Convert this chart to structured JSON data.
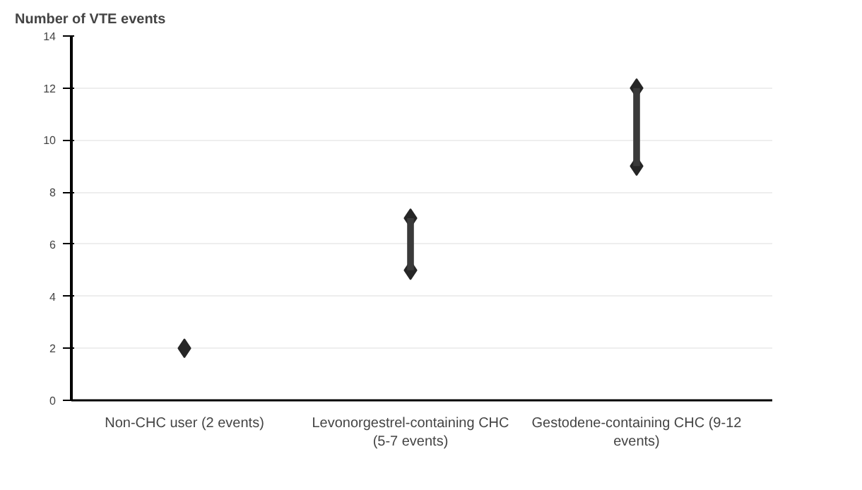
{
  "chart_data": {
    "type": "bar",
    "ylabel": "Number of VTE events",
    "categories": [
      "Non-CHC user (2 events)",
      "Levonorgestrel-containing CHC (5-7 events)",
      "Gestodene-containing CHC (9-12 events)"
    ],
    "series": [
      {
        "color": "#3a3a3a",
        "values": [
          null,
          2,
          3
        ],
        "base": [
          null,
          5,
          9
        ]
      },
      {
        "type": "scatter",
        "color": "#262626",
        "values": [
          2,
          5,
          9
        ]
      },
      {
        "type": "scatter",
        "color": "#262626",
        "values": [
          null,
          7,
          12
        ]
      }
    ],
    "marker": "diamond",
    "ylim": [
      0,
      14
    ],
    "yticks": [
      0,
      2,
      4,
      6,
      8,
      10,
      12,
      14
    ],
    "grid": "y"
  }
}
